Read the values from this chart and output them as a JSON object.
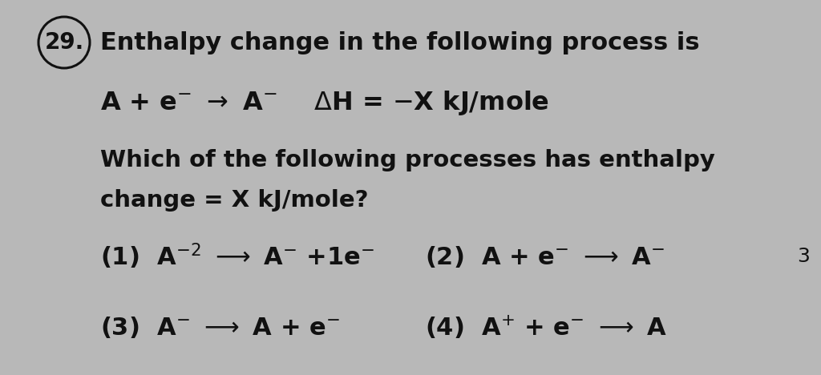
{
  "background_color": "#b8b8b8",
  "circle_number": "29.",
  "title_line": "Enthalpy change in the following process is",
  "question_line1": "Which of the following processes has enthalpy",
  "question_line2": "change = X kJ/mole?",
  "text_color": "#111111",
  "font_size_title": 22,
  "font_size_reaction": 23,
  "font_size_question": 21,
  "font_size_options": 22,
  "font_size_number": 20,
  "font_size_circle": 20
}
